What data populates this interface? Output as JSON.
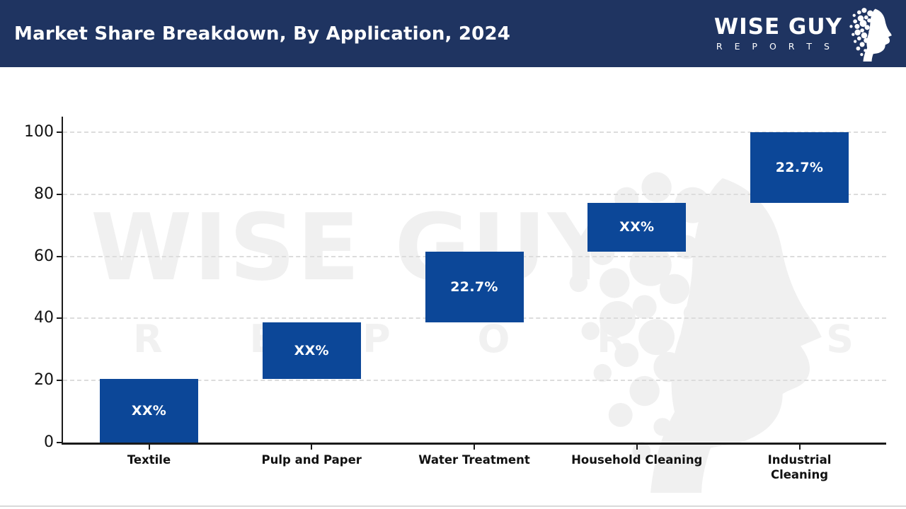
{
  "header": {
    "title": "Market Share Breakdown, By Application, 2024",
    "logo": {
      "line1": "WISE GUY",
      "line2": "R E P O R T S"
    }
  },
  "watermark": {
    "line1": "WISE GUY",
    "line2": "R E P O R T S"
  },
  "colors": {
    "header_background": "#1f3461",
    "bar_blue": "#0c4798",
    "bar_label_text": "#ffffff",
    "gridline": "#dcdcdc",
    "axis": "#1a1a1a",
    "tick_text": "#111111",
    "watermark_gray": "#f0f0f0",
    "bottom_rule": "#d9d9d9"
  },
  "chart_data": {
    "type": "bar",
    "subtype": "waterfall",
    "title": "Market Share Breakdown, By Application, 2024",
    "xlabel": "",
    "ylabel": "",
    "ylim": [
      0,
      100
    ],
    "yticks": [
      0,
      20,
      40,
      60,
      80,
      100
    ],
    "grid": "horizontal-dashed",
    "legend": null,
    "categories": [
      "Textile",
      "Pulp and Paper",
      "Water Treatment",
      "Household Cleaning",
      "Industrial\nCleaning"
    ],
    "segments": [
      {
        "category": "Textile",
        "start": 0,
        "end": 20.5,
        "value": 20.5,
        "label": "XX%"
      },
      {
        "category": "Pulp and Paper",
        "start": 20.5,
        "end": 38.8,
        "value": 18.3,
        "label": "XX%"
      },
      {
        "category": "Water Treatment",
        "start": 38.8,
        "end": 61.5,
        "value": 22.7,
        "label": "22.7%"
      },
      {
        "category": "Household Cleaning",
        "start": 61.5,
        "end": 77.3,
        "value": 15.8,
        "label": "XX%"
      },
      {
        "category": "Industrial Cleaning",
        "start": 77.3,
        "end": 100,
        "value": 22.7,
        "label": "22.7%"
      }
    ]
  }
}
